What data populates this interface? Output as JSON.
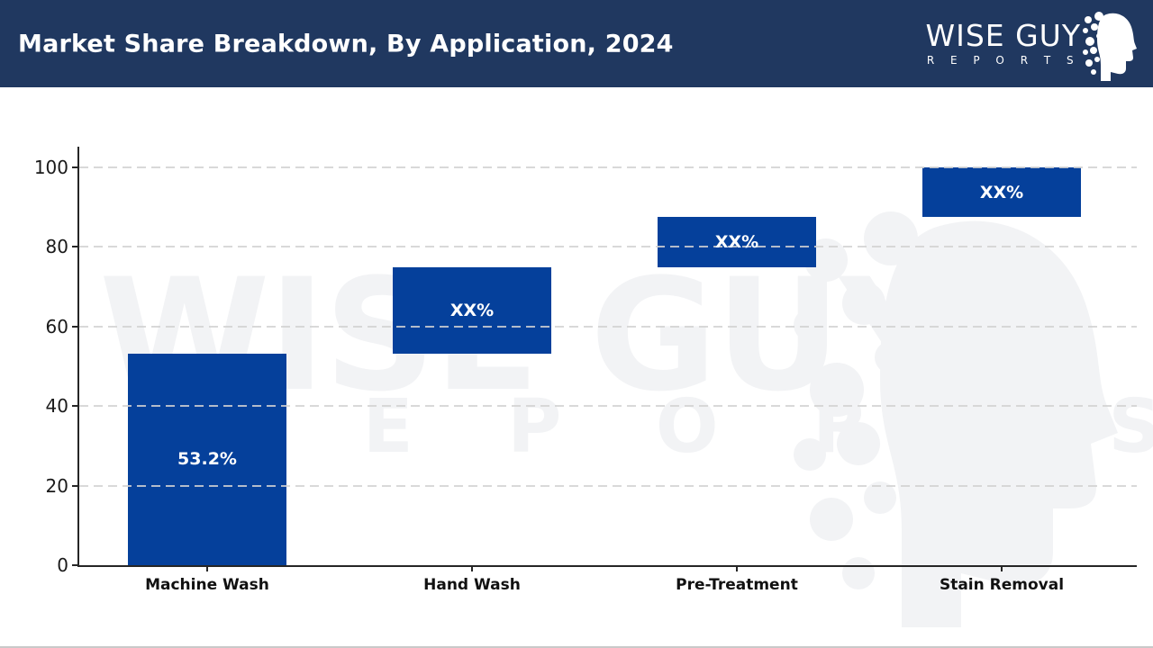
{
  "header": {
    "title": "Market Share Breakdown, By Application, 2024",
    "logo": {
      "line1": "WISE GUY",
      "line2": "R E P O R T S"
    }
  },
  "watermark": {
    "line1": "WISE GUY",
    "line2": "R E P O R T S"
  },
  "chart_data": {
    "type": "bar",
    "subtype": "waterfall",
    "title": "Market Share Breakdown, By Application, 2024",
    "categories": [
      "Machine Wash",
      "Hand Wash",
      "Pre-Treatment",
      "Stain Removal"
    ],
    "segments": [
      {
        "category": "Machine Wash",
        "start": 0,
        "end": 53.2,
        "label": "53.2%"
      },
      {
        "category": "Hand Wash",
        "start": 53.2,
        "end": 75.0,
        "label": "XX%"
      },
      {
        "category": "Pre-Treatment",
        "start": 75.0,
        "end": 87.5,
        "label": "XX%"
      },
      {
        "category": "Stain Removal",
        "start": 87.5,
        "end": 100,
        "label": "XX%"
      }
    ],
    "y_ticks": [
      0,
      20,
      40,
      60,
      80,
      100
    ],
    "ylim": [
      0,
      105
    ],
    "xlabel": "",
    "ylabel": "",
    "grid": true,
    "grid_style": "dashed",
    "legend": false,
    "bar_color": "#05409B",
    "bar_label_color": "#ffffff"
  },
  "colors": {
    "header_bg": "#203860",
    "bar": "#05409B",
    "axis": "#262626",
    "watermark": "#f2f3f5",
    "page_bg": "#ffffff"
  }
}
